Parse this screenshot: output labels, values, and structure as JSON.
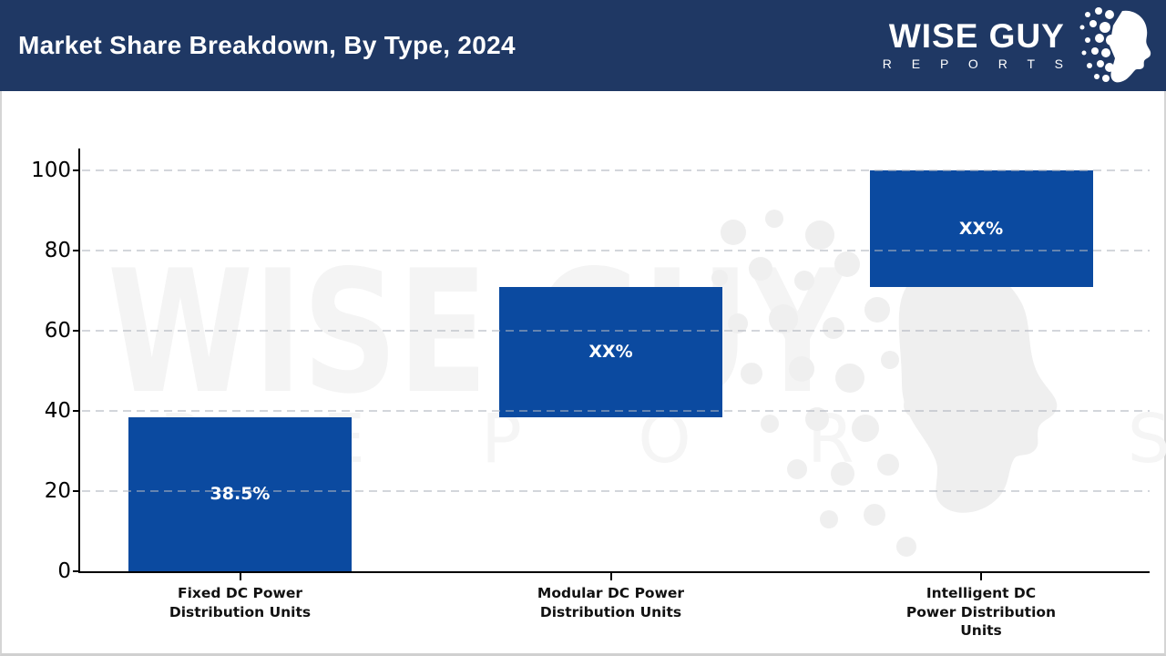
{
  "header": {
    "title": "Market Share Breakdown, By Type, 2024",
    "bg_color": "#1f3864",
    "logo": {
      "line1": "WISE GUY",
      "line2": "R E P O R T S"
    }
  },
  "watermark": {
    "line1": "WISE GUY",
    "line2": "R E P O R T S"
  },
  "chart_data": {
    "type": "bar",
    "subtype": "floating-segment-waterfall",
    "title": "Market Share Breakdown, By Type, 2024",
    "xlabel": "",
    "ylabel": "",
    "ylim": [
      0,
      100
    ],
    "yticks": [
      0,
      20,
      40,
      60,
      80,
      100
    ],
    "grid": "horizontal dashed, drawn over bars",
    "legend": "none",
    "categories": [
      "Fixed DC Power Distribution Units",
      "Modular DC Power Distribution Units",
      "Intelligent DC Power Distribution Units"
    ],
    "category_label_lines": [
      [
        "Fixed DC Power",
        "Distribution Units"
      ],
      [
        "Modular DC Power",
        "Distribution Units"
      ],
      [
        "Intelligent DC",
        "Power Distribution",
        "Units"
      ]
    ],
    "segments": [
      {
        "category": "Fixed DC Power Distribution Units",
        "start": 0,
        "end": 38.5,
        "label": "38.5%"
      },
      {
        "category": "Modular DC Power Distribution Units",
        "start": 38.5,
        "end": 71,
        "label": "XX%"
      },
      {
        "category": "Intelligent DC Power Distribution Units",
        "start": 71,
        "end": 100,
        "label": "XX%"
      }
    ],
    "bar_color": "#0b4aa0",
    "bar_label_color": "#ffffff",
    "axis_color": "#000000",
    "grid_color": "#d9d9d9"
  },
  "colors": {
    "header_bg": "#1f3864",
    "frame_border": "#d5d5d5",
    "watermark": "#f4f4f4"
  }
}
